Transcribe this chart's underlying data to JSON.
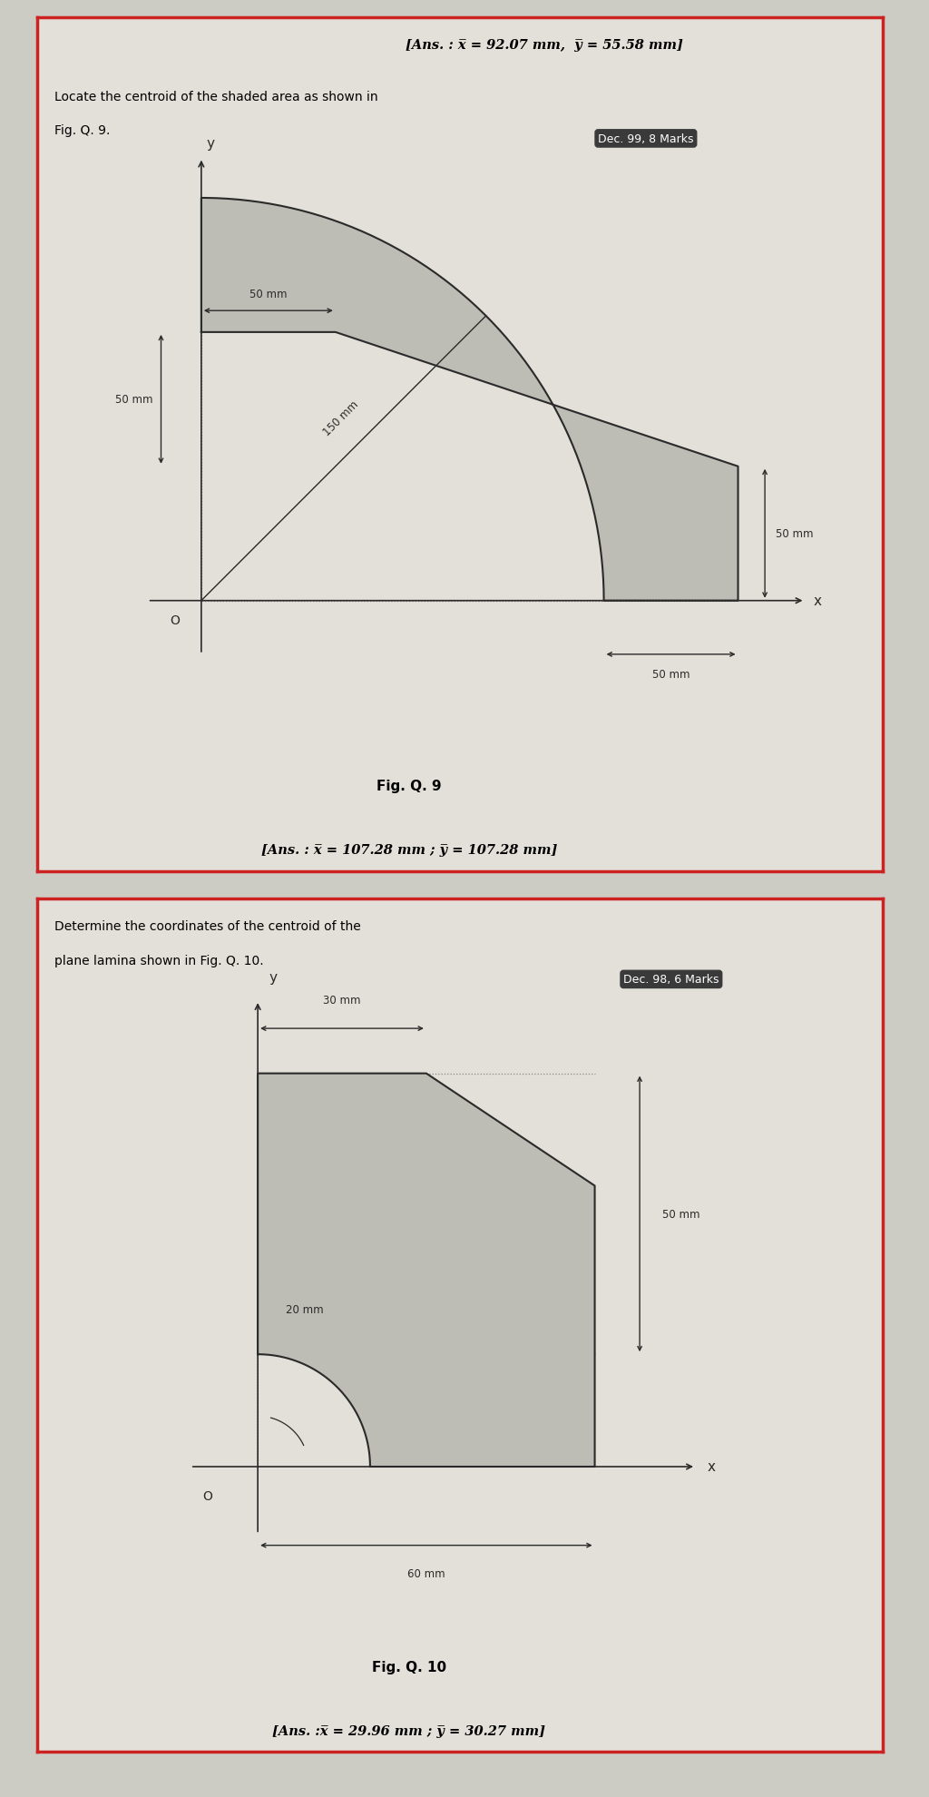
{
  "bg_color": "#cccbc4",
  "panel_color": "#e2e0d8",
  "border_color": "#cc2222",
  "fig_width": 10.24,
  "fig_height": 19.81,
  "panel1": {
    "title_ans": "[Ans. : x̅ = 92.07 mm,  y̅ = 55.58 mm]",
    "question_line1": "Locate the centroid of the shaded area as shown in",
    "question_line2": "Fig. Q. 9.",
    "marks_text": "Dec. 99, 8 Marks",
    "fig_label": "Fig. Q. 9",
    "ans_bottom": "[Ans. : x̅ = 107.28 mm ; y̅ = 107.28 mm]",
    "shape_color": "#bebdb5",
    "line_color": "#2a2a2a"
  },
  "panel2": {
    "question_line1": "Determine the coordinates of the centroid of the",
    "question_line2": "plane lamina shown in Fig. Q. 10.",
    "marks_text": "Dec. 98, 6 Marks",
    "fig_label": "Fig. Q. 10",
    "ans_bottom": "[Ans. :x̅ = 29.96 mm ; y̅ = 30.27 mm]",
    "shape_color": "#bebdb5",
    "line_color": "#2a2a2a"
  }
}
